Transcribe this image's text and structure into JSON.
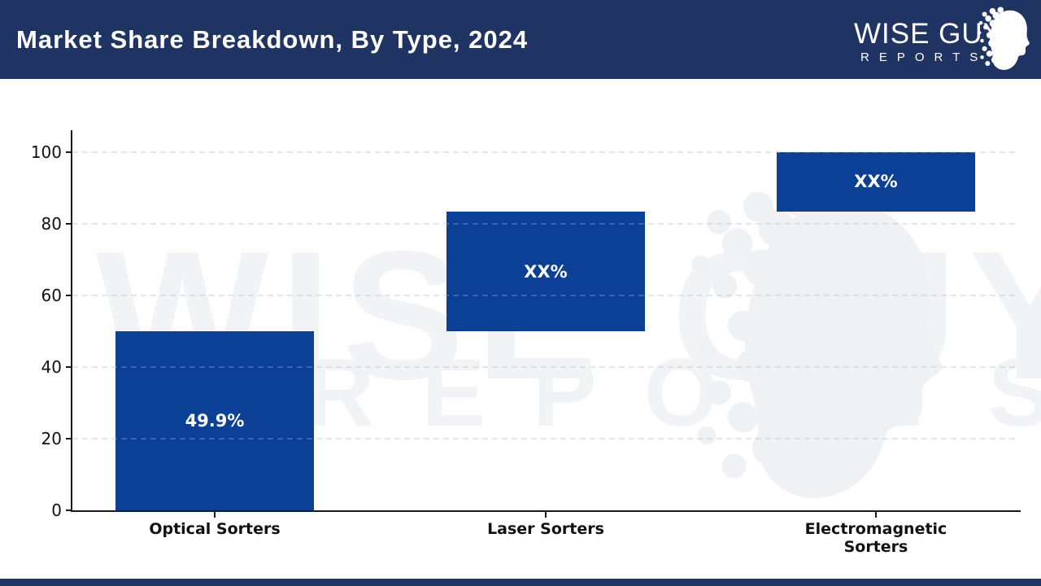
{
  "header": {
    "title": "Market Share Breakdown, By Type, 2024",
    "bg_color": "#203464",
    "logo": {
      "brand": "WISE GUY",
      "sub": "REPORTS"
    }
  },
  "watermark": {
    "line1": "WISE GUY",
    "line2": "REPORTS"
  },
  "chart_data": {
    "type": "bar",
    "variant": "floating-segment-bars",
    "title": "Market Share Breakdown, By Type, 2024",
    "categories": [
      "Optical Sorters",
      "Laser Sorters",
      "Electromagnetic Sorters"
    ],
    "segments": [
      {
        "category": "Optical Sorters",
        "start": 0,
        "end": 49.9,
        "label": "49.9%"
      },
      {
        "category": "Laser Sorters",
        "start": 49.9,
        "end": 83.5,
        "label": "XX%"
      },
      {
        "category": "Electromagnetic Sorters",
        "start": 83.5,
        "end": 100,
        "label": "XX%"
      }
    ],
    "ylim": [
      0,
      100
    ],
    "yticks": [
      0,
      20,
      40,
      60,
      80,
      100
    ],
    "grid": "dashed-horizontal",
    "legend": "none",
    "bar_color": "#0b4096",
    "bar_label_color": "#ffffff",
    "axis_color": "#1a1a1a"
  }
}
